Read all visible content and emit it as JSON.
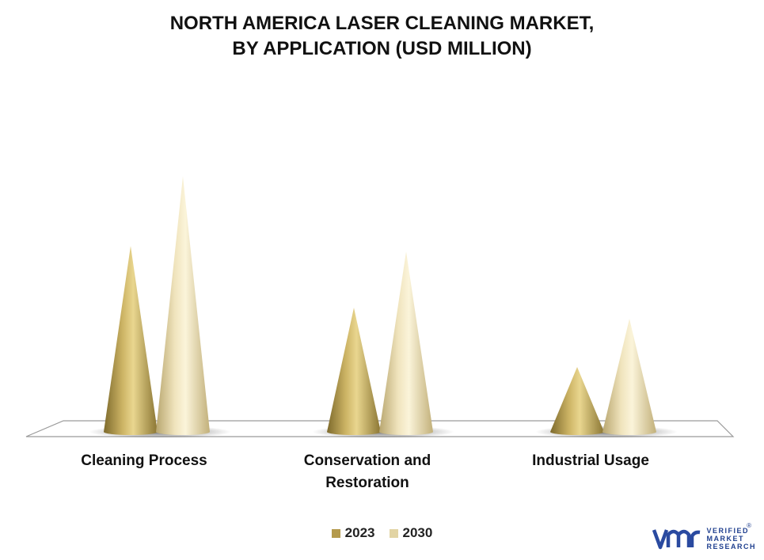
{
  "title": {
    "line1": "NORTH AMERICA LASER CLEANING MARKET,",
    "line2": "BY APPLICATION (USD MILLION)"
  },
  "legend": [
    {
      "label": "2023",
      "color": "#b49a4c"
    },
    {
      "label": "2030",
      "color": "#e2d4a4"
    }
  ],
  "logo": {
    "mark": "vmr",
    "line1": "VERIFIED",
    "line2": "MARKET",
    "line3": "RESEARCH"
  },
  "chart_data": {
    "type": "bar",
    "shape": "cone",
    "categories": [
      "Cleaning Process",
      "Conservation and Restoration",
      "Industrial Usage"
    ],
    "series": [
      {
        "name": "2023",
        "values": [
          235,
          157,
          82
        ],
        "color": "#b49a4c"
      },
      {
        "name": "2030",
        "values": [
          323,
          228,
          143
        ],
        "color": "#e2d4a4"
      }
    ],
    "ylim": [
      0,
      350
    ],
    "grid": false,
    "legend_position": "bottom"
  }
}
